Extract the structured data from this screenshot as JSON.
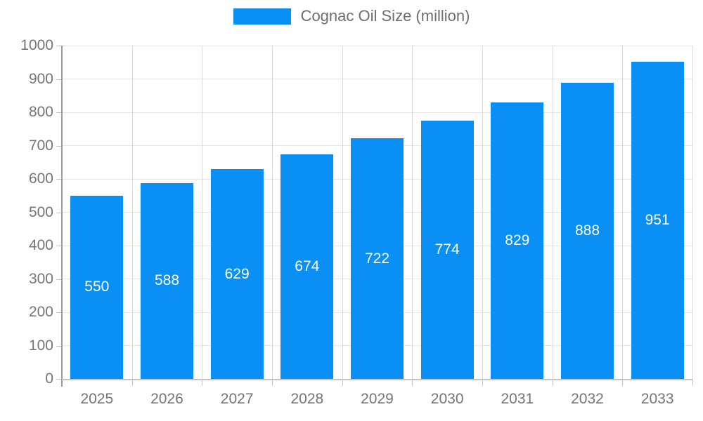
{
  "legend": {
    "label": "Cognac Oil Size (million)"
  },
  "chart_data": {
    "type": "bar",
    "title": "",
    "xlabel": "",
    "ylabel": "",
    "series_name": "Cognac Oil Size (million)",
    "categories": [
      "2025",
      "2026",
      "2027",
      "2028",
      "2029",
      "2030",
      "2031",
      "2032",
      "2033"
    ],
    "values": [
      550,
      588,
      629,
      674,
      722,
      774,
      829,
      888,
      951
    ],
    "value_labels": [
      "550",
      "588",
      "629",
      "674",
      "722",
      "774",
      "829",
      "888",
      "951"
    ],
    "ylim": [
      0,
      1000
    ],
    "ytick_interval": 100,
    "yticks": [
      0,
      100,
      200,
      300,
      400,
      500,
      600,
      700,
      800,
      900,
      1000
    ],
    "grid": true,
    "legend_position": "top",
    "colors": {
      "bar": "#0a90f4",
      "grid": "#e5e5e5",
      "vgrid": "#dadada",
      "axis": "#9a9a9a",
      "axis_light": "#c4c4c4",
      "tick_text": "#757575",
      "value_label": "#ffffff",
      "legend_text": "#6e6e6e"
    }
  }
}
